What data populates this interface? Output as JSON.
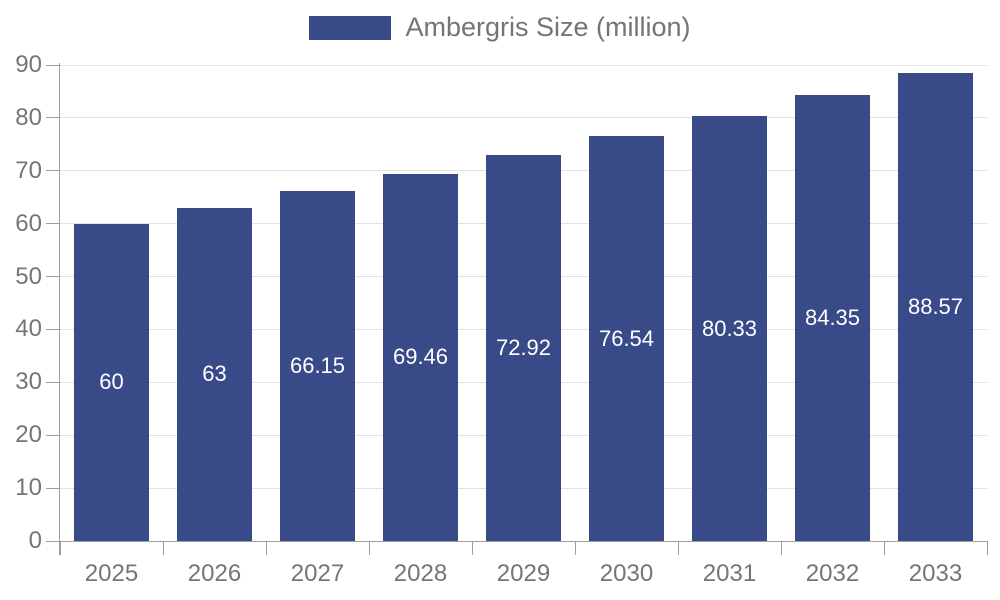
{
  "legend": {
    "label": "Ambergris Size (million)",
    "swatch_color": "#394a88"
  },
  "chart_data": {
    "type": "bar",
    "title": "",
    "xlabel": "",
    "ylabel": "",
    "categories": [
      "2025",
      "2026",
      "2027",
      "2028",
      "2029",
      "2030",
      "2031",
      "2032",
      "2033"
    ],
    "series": [
      {
        "name": "Ambergris Size (million)",
        "values": [
          60,
          63,
          66.15,
          69.46,
          72.92,
          76.54,
          80.33,
          84.35,
          88.57
        ],
        "value_labels": [
          "60",
          "63",
          "66.15",
          "69.46",
          "72.92",
          "76.54",
          "80.33",
          "84.35",
          "88.57"
        ]
      }
    ],
    "ylim": [
      0,
      90
    ],
    "ytick_step": 10,
    "ytick_labels": [
      "0",
      "10",
      "20",
      "30",
      "40",
      "50",
      "60",
      "70",
      "80",
      "90"
    ],
    "grid": true,
    "legend_position": "top-center",
    "colors": {
      "bar": "#394a88",
      "value_label": "#ffffff",
      "axis_label": "#757575",
      "gridline": "#e2e2e2",
      "axis_line": "#9e9e9e"
    }
  }
}
